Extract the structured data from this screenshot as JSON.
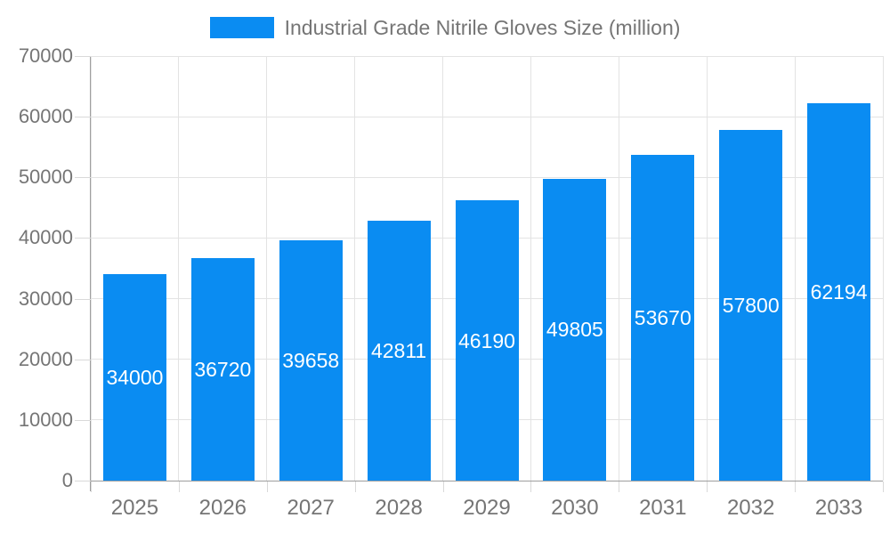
{
  "legend": {
    "label": "Industrial Grade Nitrile Gloves Size (million)"
  },
  "colors": {
    "bar": "#0a8cf2",
    "axis_text": "#757575",
    "grid_line": "#e3e3e3",
    "axis_line": "#9e9e9e",
    "tick_line": "#d9d9d9",
    "value_label_text": "#ffffff",
    "background": "#ffffff"
  },
  "chart_data": {
    "type": "bar",
    "title": "",
    "xlabel": "",
    "ylabel": "",
    "series_name": "Industrial Grade Nitrile Gloves Size (million)",
    "categories": [
      "2025",
      "2026",
      "2027",
      "2028",
      "2029",
      "2030",
      "2031",
      "2032",
      "2033"
    ],
    "values": [
      34000,
      36720,
      39658,
      42811,
      46190,
      49805,
      53670,
      57800,
      62194
    ],
    "value_labels_visible": true,
    "value_label_position": "inside-center",
    "ylim": [
      0,
      70000
    ],
    "yticks": [
      0,
      10000,
      20000,
      30000,
      40000,
      50000,
      60000,
      70000
    ],
    "grid": true,
    "legend_position": "top-center"
  }
}
